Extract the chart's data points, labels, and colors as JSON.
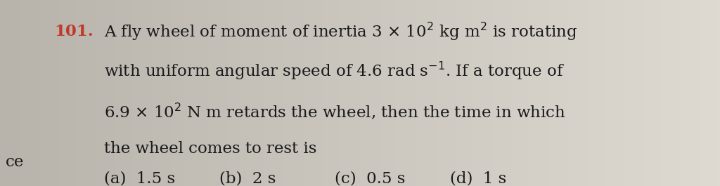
{
  "bg_color": "#c8c4bc",
  "bg_color_right": "#e8e4dc",
  "number_color": "#c0392b",
  "text_color": "#1a1a1a",
  "number": "101.",
  "line1": "A fly wheel of moment of inertia 3 $\\times$ 10$^{2}$ kg m$^{2}$ is rotating",
  "line2": "with uniform angular speed of 4.6 rad s$^{-1}$. If a torque of",
  "line3": "6.9 $\\times$ 10$^{2}$ N m retards the wheel, then the time in which",
  "line4": "the wheel comes to rest is",
  "options": [
    {
      "label": "(a)",
      "value": "1.5 s"
    },
    {
      "label": "(b)",
      "value": "2 s"
    },
    {
      "label": "(c)",
      "value": "0.5 s"
    },
    {
      "label": "(d)",
      "value": "1 s"
    }
  ],
  "left_margin_text": "ce",
  "font_size_main": 16.5,
  "font_size_options": 16.5
}
